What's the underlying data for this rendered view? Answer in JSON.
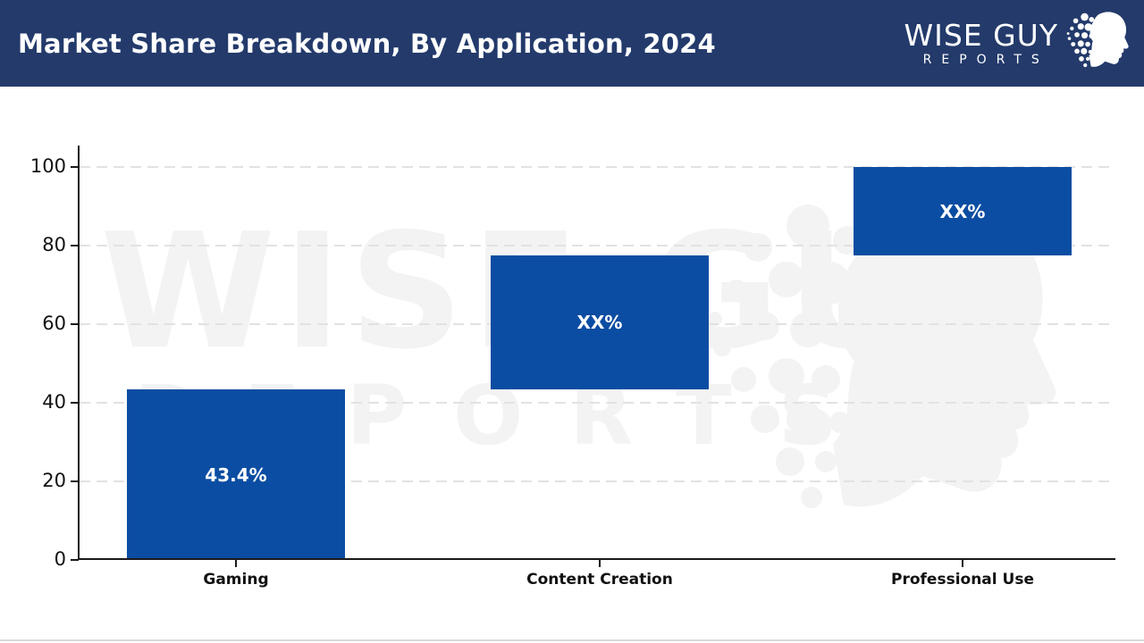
{
  "header": {
    "title": "Market Share Breakdown, By Application, 2024",
    "logo_line1": "WISE GUY",
    "logo_line2": "REPORTS"
  },
  "watermark": {
    "line1": "WISE GUY",
    "line2": "REPORTS"
  },
  "colors": {
    "header_bg": "#233a6b",
    "bar": "#0b4da2",
    "bar_label": "#ffffff",
    "grid": "#e2e2e2",
    "axis": "#1a1a1a",
    "watermark": "#f3f3f3"
  },
  "chart_data": {
    "type": "bar",
    "subtype": "floating-waterfall",
    "title": "Market Share Breakdown, By Application, 2024",
    "categories": [
      "Gaming",
      "Content Creation",
      "Professional Use"
    ],
    "series": [
      {
        "name": "Market share (%)",
        "segments": [
          {
            "category": "Gaming",
            "start": 0,
            "end": 43.4,
            "label": "43.4%"
          },
          {
            "category": "Content Creation",
            "start": 43.4,
            "end": 77.5,
            "label": "XX%"
          },
          {
            "category": "Professional Use",
            "start": 77.5,
            "end": 100,
            "label": "XX%"
          }
        ]
      }
    ],
    "bar_labels": [
      "43.4%",
      "XX%",
      "XX%"
    ],
    "xlabel": "",
    "ylabel": "",
    "ylim": [
      0,
      105
    ],
    "yticks": [
      0,
      20,
      40,
      60,
      80,
      100
    ],
    "grid": "dashed-horizontal",
    "legend": "none"
  }
}
